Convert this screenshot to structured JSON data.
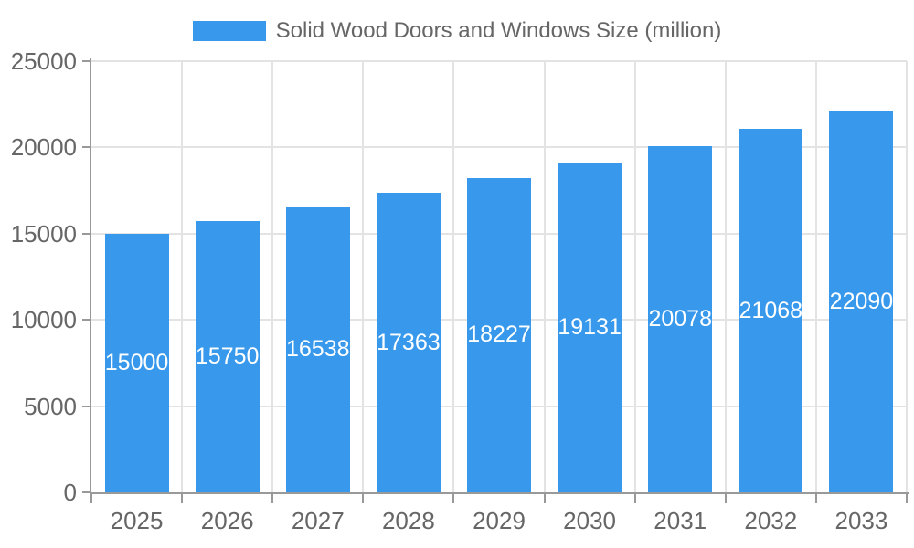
{
  "chart_data": {
    "type": "bar",
    "title": "",
    "legend": "Solid Wood Doors and Windows Size (million)",
    "legend_position": "top",
    "categories": [
      "2025",
      "2026",
      "2027",
      "2028",
      "2029",
      "2030",
      "2031",
      "2032",
      "2033"
    ],
    "values": [
      15000,
      15750,
      16538,
      17363,
      18227,
      19131,
      20078,
      21068,
      22090
    ],
    "value_labels": [
      "15000",
      "15750",
      "16538",
      "17363",
      "18227",
      "19131",
      "20078",
      "21068",
      "22090"
    ],
    "xlabel": "",
    "ylabel": "",
    "ylim": [
      0,
      25000
    ],
    "yticks": [
      0,
      5000,
      10000,
      15000,
      20000,
      25000
    ],
    "ytick_labels": [
      "0",
      "5000",
      "10000",
      "15000",
      "20000",
      "25000"
    ],
    "grid": true,
    "colors": {
      "bar": "#3899EC",
      "bar_label": "#FFFFFF",
      "axis_line": "#999999",
      "gridline": "#E3E3E3",
      "tick_text": "#666666",
      "legend_text": "#666666",
      "background": "#FFFFFF"
    }
  }
}
